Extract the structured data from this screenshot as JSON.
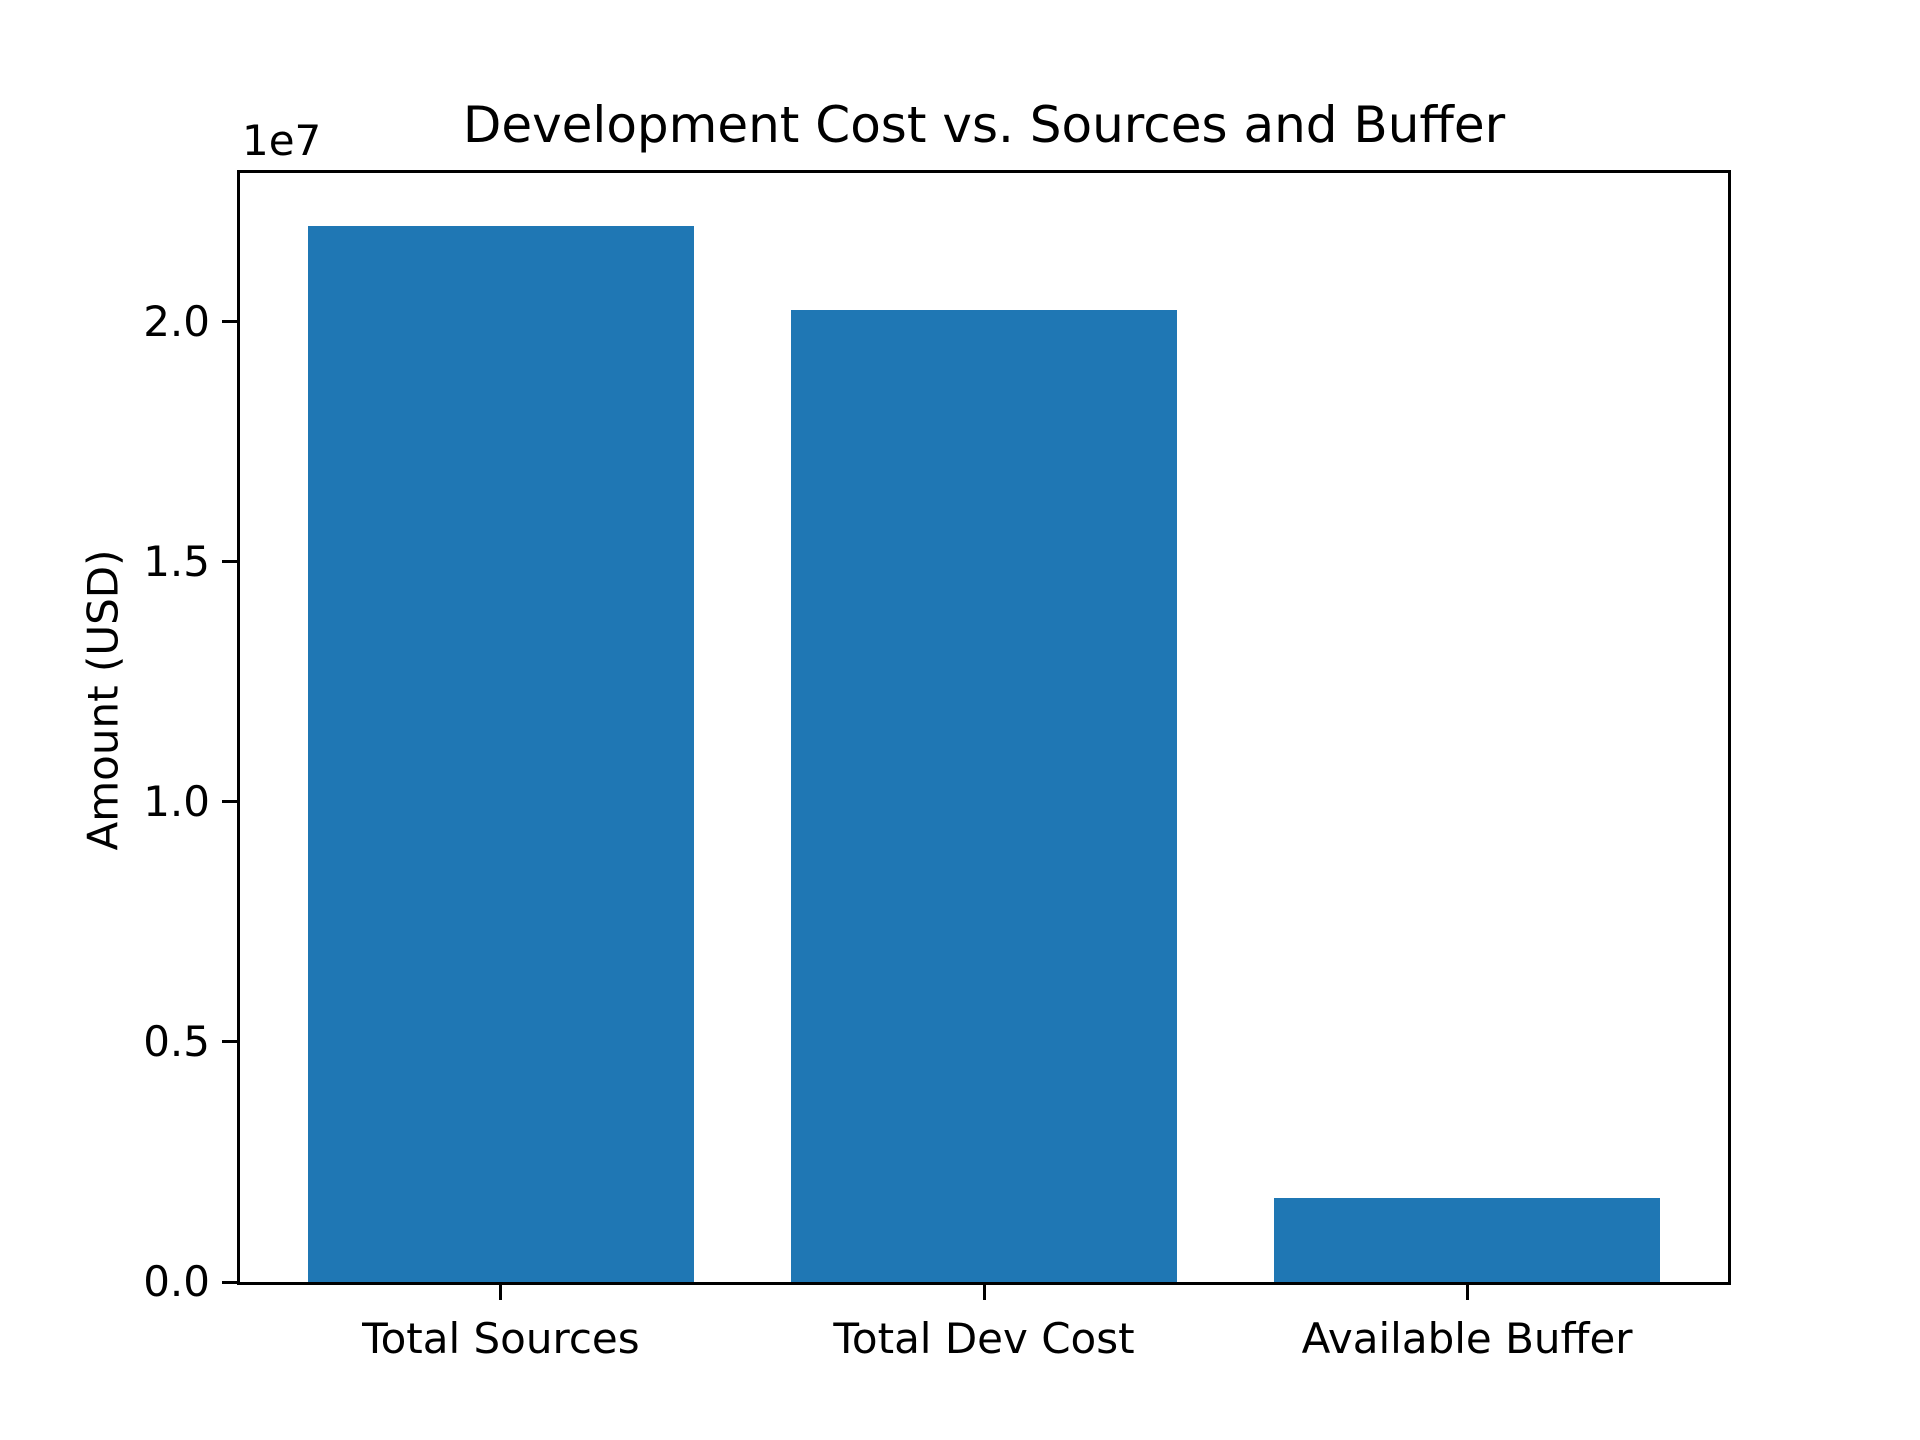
{
  "chart_data": {
    "type": "bar",
    "title": "Development Cost vs. Sources and Buffer",
    "ylabel": "Amount (USD)",
    "xlabel": "",
    "offset_text": "1e7",
    "categories": [
      "Total Sources",
      "Total Dev Cost",
      "Available Buffer"
    ],
    "values": [
      22000000,
      20250000,
      1750000
    ],
    "ytick_values": [
      0,
      5000000,
      10000000,
      15000000,
      20000000
    ],
    "ytick_labels": [
      "0.0",
      "0.5",
      "1.0",
      "1.5",
      "2.0"
    ],
    "ylim": [
      0,
      23100000
    ],
    "xlim": [
      -0.54,
      2.54
    ],
    "bar_width": 0.8,
    "bar_color": "#1f77b4",
    "grid": false,
    "legend": null
  }
}
